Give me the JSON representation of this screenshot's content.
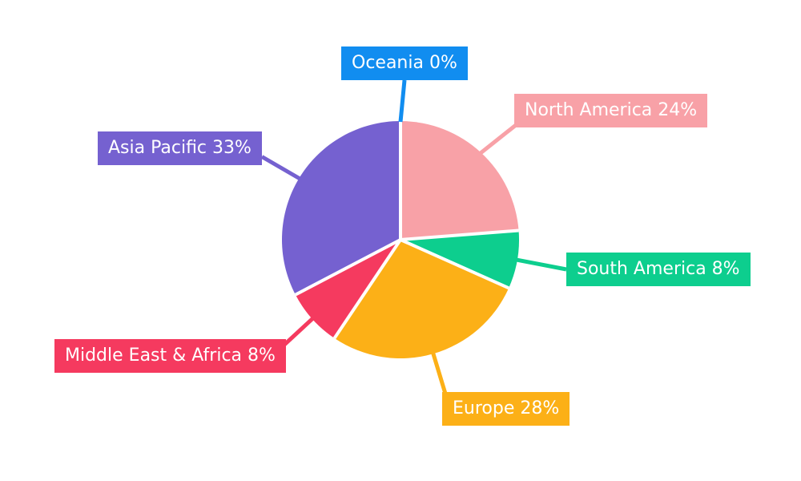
{
  "chart_data": {
    "type": "pie",
    "title": "",
    "unit": "%",
    "legend_position": "none",
    "start_angle_deg": 0,
    "direction": "clockwise",
    "categories": [
      "Oceania",
      "North America",
      "South America",
      "Europe",
      "Middle East & Africa",
      "Asia Pacific"
    ],
    "values": [
      0,
      24,
      8,
      28,
      8,
      33
    ],
    "slices": [
      {
        "label": "Oceania",
        "value": 0,
        "display": "Oceania 0%",
        "color": "#118DF0"
      },
      {
        "label": "North America",
        "value": 24,
        "display": "North America 24%",
        "color": "#F8A1A7"
      },
      {
        "label": "South America",
        "value": 8,
        "display": "South America 8%",
        "color": "#0DCE8E"
      },
      {
        "label": "Europe",
        "value": 28,
        "display": "Europe 28%",
        "color": "#FCB017"
      },
      {
        "label": "Middle East & Africa",
        "value": 8,
        "display": "Middle East & Africa 8%",
        "color": "#F53A5F"
      },
      {
        "label": "Asia Pacific",
        "value": 33,
        "display": "Asia Pacific 33%",
        "color": "#7561D0"
      }
    ],
    "colors": {
      "background": "#FFFFFF",
      "label_text": "#FFFFFF",
      "separator": "#FFFFFF"
    }
  }
}
